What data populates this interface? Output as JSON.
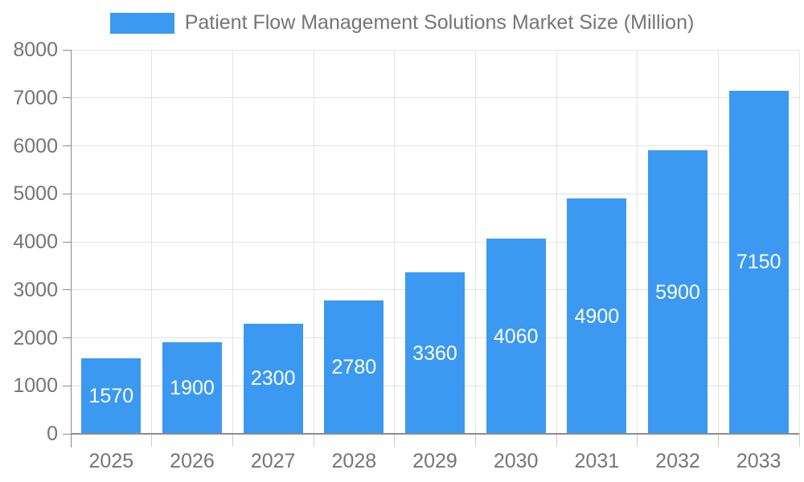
{
  "chart_data": {
    "type": "bar",
    "title": "Patient Flow Management Solutions Market Size (Million)",
    "legend": {
      "label": "Patient Flow Management Solutions Market Size (Million)",
      "position": "top"
    },
    "categories": [
      "2025",
      "2026",
      "2027",
      "2028",
      "2029",
      "2030",
      "2031",
      "2032",
      "2033"
    ],
    "values": [
      1570,
      1900,
      2300,
      2780,
      3360,
      4060,
      4900,
      5900,
      7150
    ],
    "xlabel": "",
    "ylabel": "",
    "ylim": [
      0,
      8000
    ],
    "ytick_step": 1000,
    "ytick_labels": [
      "0",
      "1000",
      "2000",
      "3000",
      "4000",
      "5000",
      "6000",
      "7000",
      "8000"
    ],
    "grid": true,
    "colors": {
      "bar": "#3B99F1",
      "bar_value_text": "#ffffff",
      "axis_text": "#757575",
      "grid_line": "#e3e3e3",
      "axis_line": "#8c8c8c",
      "minor_tick": "#cccccc"
    }
  }
}
